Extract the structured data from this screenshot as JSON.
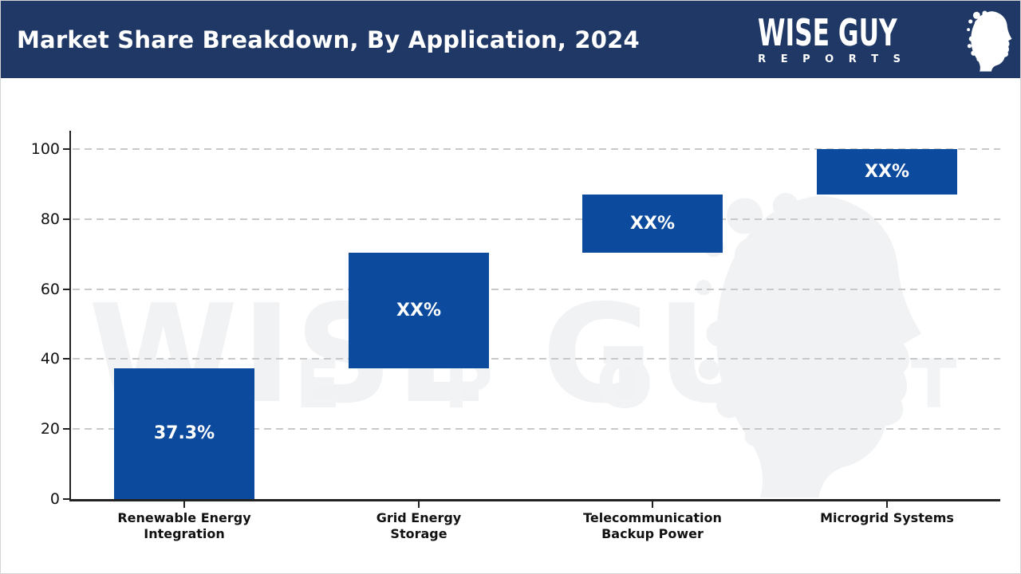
{
  "header": {
    "title": "Market Share Breakdown, By Application, 2024",
    "logo": {
      "name1": "WISE GUY",
      "name2": "R E P O R T S",
      "icon": "dotted-head-profile-icon"
    }
  },
  "watermark": {
    "line1": "WISE GUY",
    "line2": "R E P O R T S",
    "icon": "dotted-head-profile-icon"
  },
  "chart_data": {
    "type": "bar",
    "subtype": "floating-waterfall",
    "title": "Market Share Breakdown, By Application, 2024",
    "categories": [
      "Renewable Energy\nIntegration",
      "Grid Energy\nStorage",
      "Telecommunication\nBackup Power",
      "Microgrid Systems"
    ],
    "bars": [
      {
        "category": "Renewable Energy Integration",
        "start": 0,
        "end": 37.3,
        "label": "37.3%"
      },
      {
        "category": "Grid Energy Storage",
        "start": 37.3,
        "end": 70.3,
        "label": "XX%"
      },
      {
        "category": "Telecommunication Backup Power",
        "start": 70.3,
        "end": 87.0,
        "label": "XX%"
      },
      {
        "category": "Microgrid Systems",
        "start": 87.0,
        "end": 100.0,
        "label": "XX%"
      }
    ],
    "y_ticks": [
      0,
      20,
      40,
      60,
      80,
      100
    ],
    "ylim": [
      0,
      105
    ],
    "xlabel": "",
    "ylabel": "",
    "grid": "horizontal-dashed",
    "legend": false
  },
  "colors": {
    "header_bg": "#1f3866",
    "title_text": "#ffffff",
    "bar": "#0c4a9d",
    "bar_label": "#ffffff",
    "axis": "#222222",
    "grid": "#c9c9c9",
    "tick_label": "#111111",
    "watermark": "#f1f2f4"
  }
}
